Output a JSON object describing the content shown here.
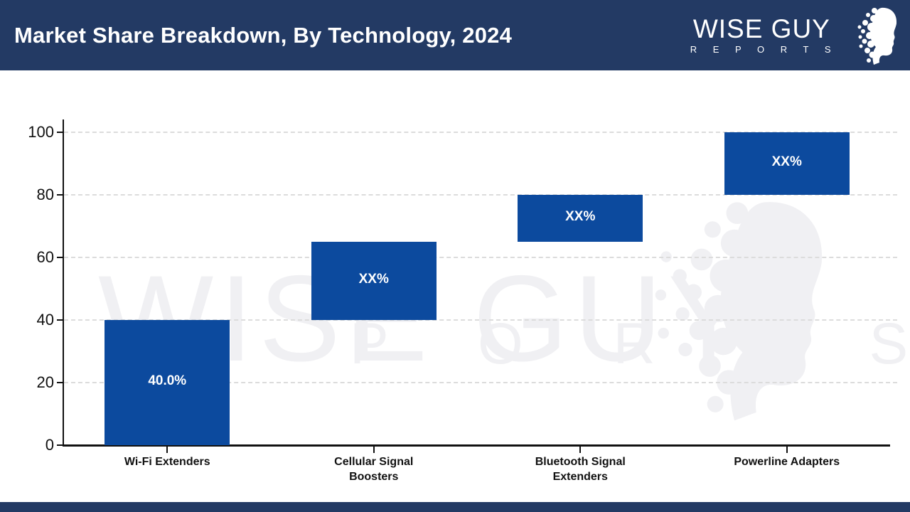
{
  "header": {
    "title": "Market Share Breakdown, By Technology, 2024",
    "logo": {
      "name": "WISE GUY",
      "subtitle": "R E P O R T S"
    }
  },
  "watermark": {
    "line1": "WISE GUY",
    "line2": "P O R T S"
  },
  "colors": {
    "header_bg": "#233a64",
    "footer_bg": "#233a64",
    "bar": "#0c4a9e",
    "bar_label": "#ffffff",
    "gridline": "#dcdcdc",
    "axis": "#111111",
    "watermark": "#f0f0f3"
  },
  "chart_data": {
    "type": "bar",
    "subtype": "waterfall",
    "title": "Market Share Breakdown, By Technology, 2024",
    "categories": [
      "Wi-Fi Extenders",
      "Cellular Signal Boosters",
      "Bluetooth Signal Extenders",
      "Powerline Adapters"
    ],
    "segments": [
      {
        "category": "Wi-Fi Extenders",
        "start": 0,
        "end": 40,
        "value": 40.0,
        "label": "40.0%"
      },
      {
        "category": "Cellular Signal Boosters",
        "start": 40,
        "end": 65,
        "value": 25,
        "label": "XX%"
      },
      {
        "category": "Bluetooth Signal Extenders",
        "start": 65,
        "end": 80,
        "value": 15,
        "label": "XX%"
      },
      {
        "category": "Powerline Adapters",
        "start": 80,
        "end": 100,
        "value": 20,
        "label": "XX%"
      }
    ],
    "xlabel": "",
    "ylabel": "",
    "ylim": [
      0,
      100
    ],
    "yticks": [
      0,
      20,
      40,
      60,
      80,
      100
    ],
    "grid": "horizontal-dashed",
    "legend": "none"
  }
}
